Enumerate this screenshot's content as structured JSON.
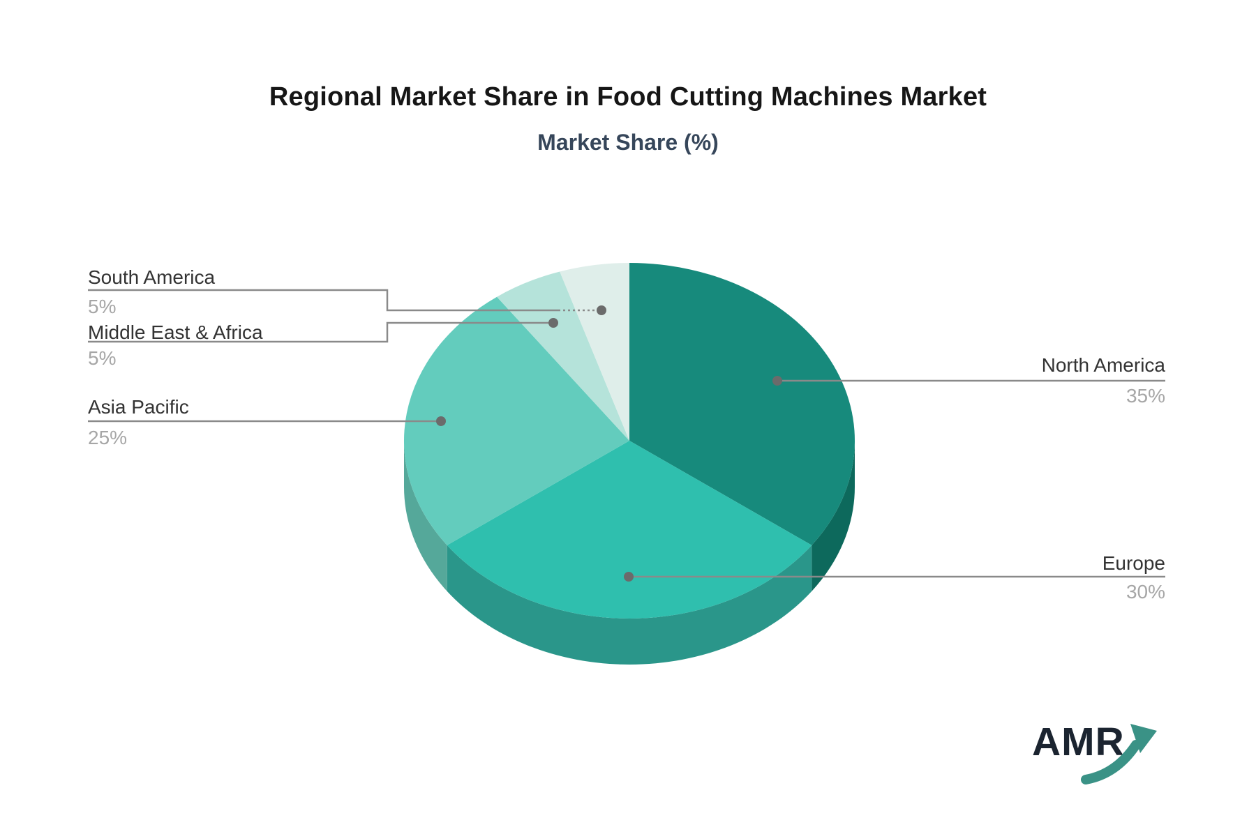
{
  "chart_data": {
    "type": "pie",
    "style": "3d",
    "title": "Regional Market Share in Food Cutting Machines Market",
    "subtitle": "Market Share (%)",
    "unit": "%",
    "start_angle_deg": 0,
    "direction": "clockwise",
    "legend": "none",
    "slices": [
      {
        "label": "North America",
        "value": 35,
        "pct_label": "35%",
        "color": "#178a7c",
        "side_color": "#0d695c"
      },
      {
        "label": "Europe",
        "value": 30,
        "pct_label": "30%",
        "color": "#2fbfae",
        "side_color": "#2a968a"
      },
      {
        "label": "Asia Pacific",
        "value": 25,
        "pct_label": "25%",
        "color": "#63ccbd",
        "side_color": "#55a89a"
      },
      {
        "label": "Middle East & Africa",
        "value": 5,
        "pct_label": "5%",
        "color": "#b5e3da",
        "side_color": "#9ccfc5"
      },
      {
        "label": "South America",
        "value": 5,
        "pct_label": "5%",
        "color": "#dfeeea",
        "side_color": "#c4ddd8"
      }
    ],
    "label_color": "#333333",
    "pct_color": "#a6a6a6",
    "connector_color": "#8a8a8a",
    "dot_color": "#6b6b6b"
  },
  "logo": {
    "text": "AMR",
    "arrow_color": "#3a9286"
  }
}
